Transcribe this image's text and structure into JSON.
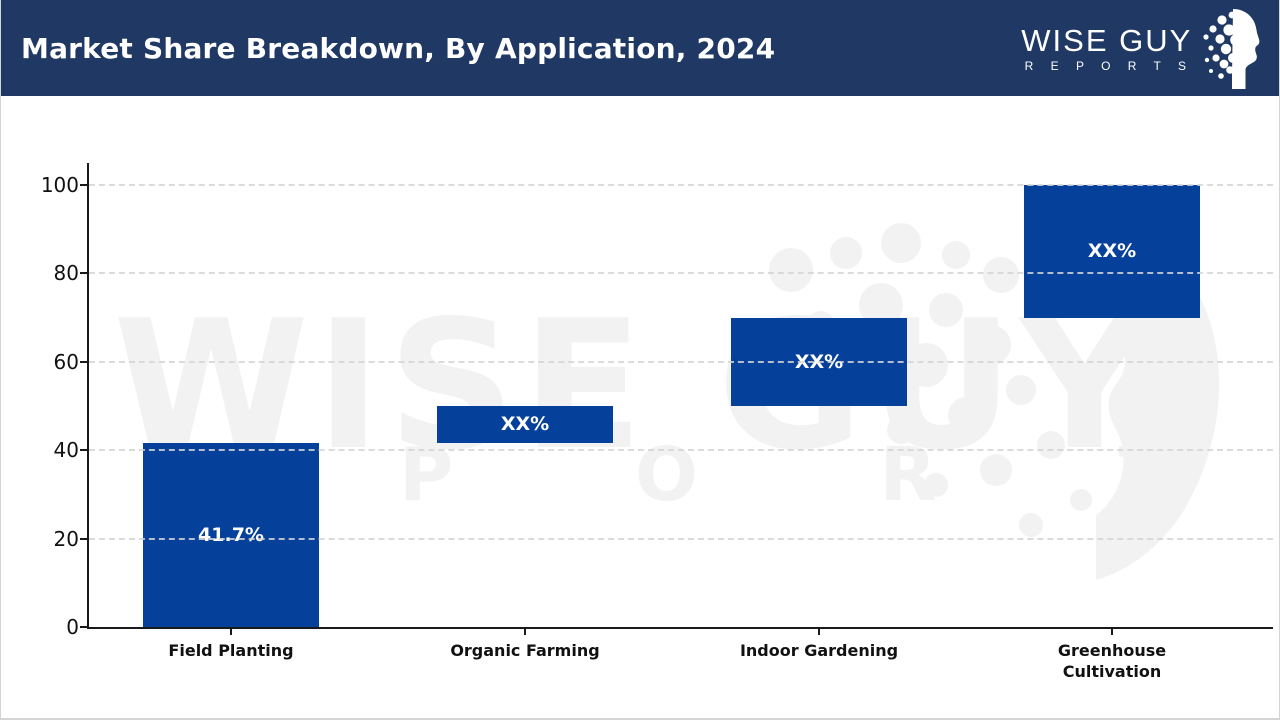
{
  "header": {
    "title": "Market Share Breakdown, By Application, 2024",
    "bg_color": "#1f3864",
    "logo": {
      "line1": "WISE GUY",
      "line2": "R E P O R T S",
      "face_icon": "dotted-head-profile"
    }
  },
  "watermark": {
    "line1": "WISE GUY",
    "line2": "P O R T S",
    "color": "#f2f2f2"
  },
  "chart_data": {
    "type": "bar",
    "subtype": "waterfall",
    "title": "Market Share Breakdown, By Application, 2024",
    "xlabel": "",
    "ylabel": "",
    "categories": [
      "Field Planting",
      "Organic Farming",
      "Indoor Gardening",
      "Greenhouse Cultivation"
    ],
    "segments": [
      {
        "category": "Field Planting",
        "start": 0,
        "end": 41.7,
        "label": "41.7%"
      },
      {
        "category": "Organic Farming",
        "start": 41.7,
        "end": 50,
        "label": "XX%"
      },
      {
        "category": "Indoor Gardening",
        "start": 50,
        "end": 70,
        "label": "XX%"
      },
      {
        "category": "Greenhouse Cultivation",
        "start": 70,
        "end": 100,
        "label": "XX%"
      }
    ],
    "yticks": [
      0,
      20,
      40,
      60,
      80,
      100
    ],
    "ylim": [
      0,
      105
    ],
    "bar_color": "#05419b",
    "grid": "dashed-horizontal",
    "legend": "none"
  }
}
